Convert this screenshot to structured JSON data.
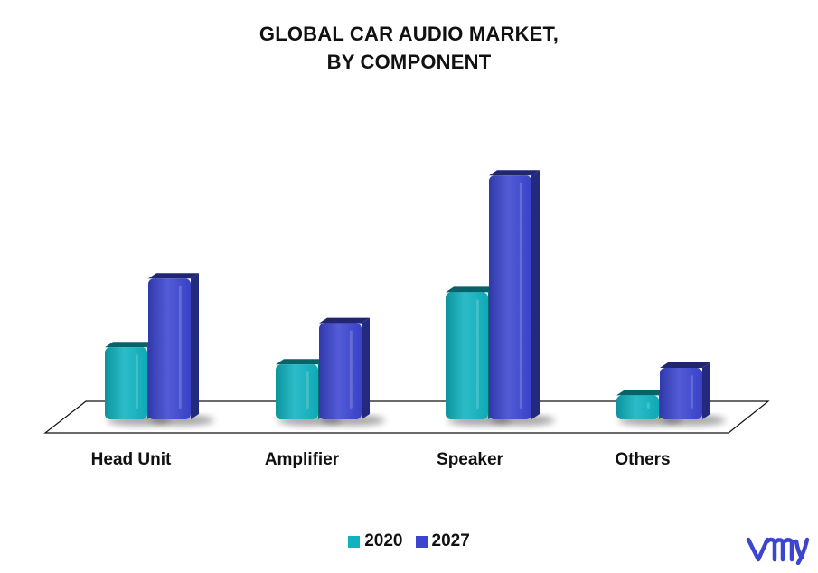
{
  "chart_data": {
    "type": "bar",
    "title_lines": [
      "GLOBAL CAR AUDIO MARKET,",
      "BY COMPONENT"
    ],
    "categories": [
      "Head Unit",
      "Amplifier",
      "Speaker",
      "Others"
    ],
    "series": [
      {
        "name": "2020",
        "color": "#0fb3c0",
        "values": [
          2.1,
          1.6,
          3.7,
          0.7
        ]
      },
      {
        "name": "2027",
        "color": "#3b45d0",
        "values": [
          4.1,
          2.8,
          7.1,
          1.5
        ]
      }
    ],
    "ylim": [
      0,
      8
    ],
    "grid": false,
    "legend_position": "bottom"
  },
  "watermark": {
    "icon": "vmr-logo-icon",
    "color": "#3b45d0"
  }
}
